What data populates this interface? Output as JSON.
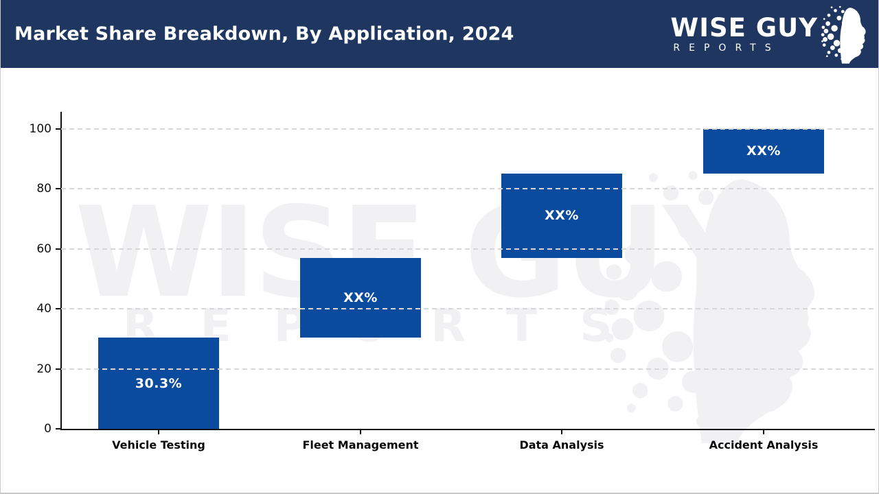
{
  "header": {
    "title": "Market Share Breakdown, By Application, 2024",
    "logo": {
      "line1": "WISE GUY",
      "line2": "REPORTS"
    }
  },
  "watermark": {
    "line1": "WISE GUY",
    "line2": "REPORTS"
  },
  "chart_data": {
    "type": "bar",
    "subtype": "waterfall",
    "title": "Market Share Breakdown, By Application, 2024",
    "categories": [
      "Vehicle Testing",
      "Fleet Management",
      "Data Analysis",
      "Accident Analysis"
    ],
    "segments": [
      {
        "category": "Vehicle Testing",
        "start": 0,
        "end": 30.3,
        "label": "30.3%"
      },
      {
        "category": "Fleet Management",
        "start": 30.3,
        "end": 57,
        "label": "XX%"
      },
      {
        "category": "Data Analysis",
        "start": 57,
        "end": 85,
        "label": "XX%"
      },
      {
        "category": "Accident Analysis",
        "start": 85,
        "end": 100,
        "label": "XX%"
      }
    ],
    "xlabel": "",
    "ylabel": "",
    "yticks": [
      0,
      20,
      40,
      60,
      80,
      100
    ],
    "ylim": [
      0,
      105
    ],
    "grid": true,
    "gridline_style": "dashed",
    "legend": "none",
    "colors": {
      "bar": "#0a4b9e",
      "bar_label": "#ffffff",
      "header_bg": "#1f3660",
      "gridline": "#d7d7d7",
      "axis": "#111111",
      "watermark": "#f1f1f3"
    }
  }
}
